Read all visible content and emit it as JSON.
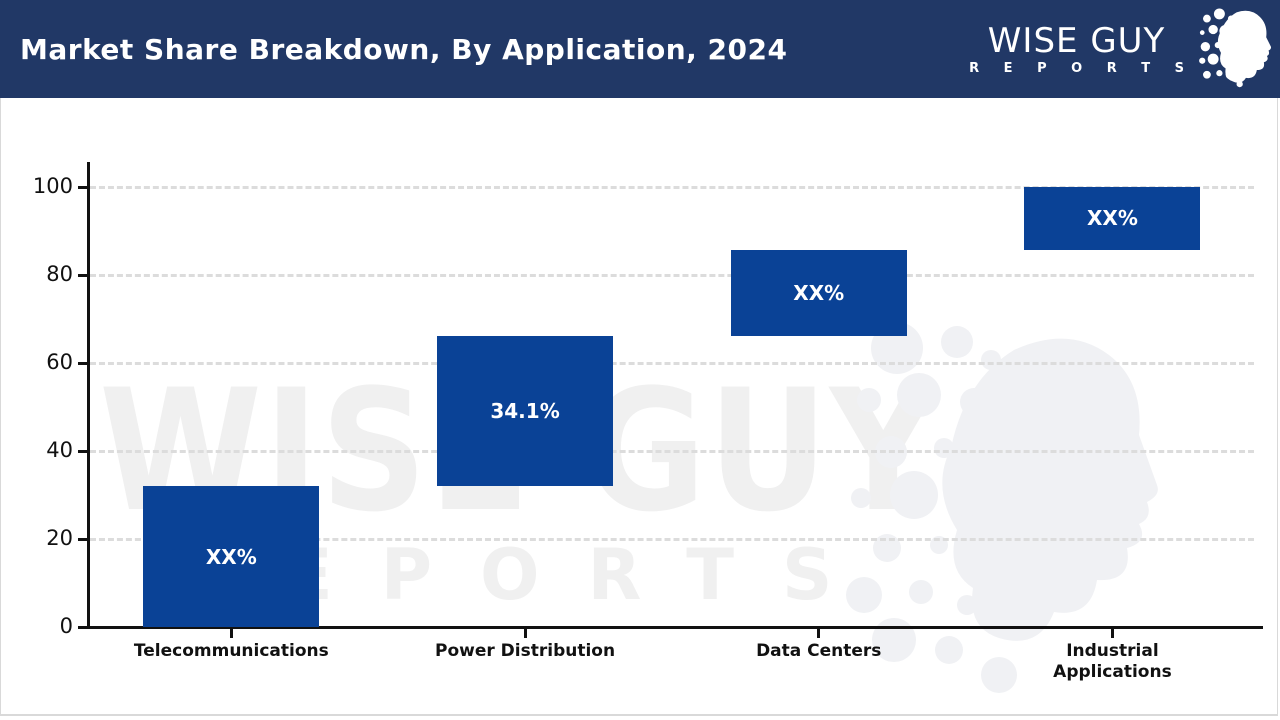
{
  "header": {
    "title": "Market Share Breakdown, By Application, 2024",
    "logo": {
      "line1": "WISE GUY",
      "line2": "REPORTS"
    }
  },
  "watermark": {
    "line1": "WISE GUY",
    "line2": "REPORTS"
  },
  "colors": {
    "header_bg": "#213866",
    "bar": "#0a4296",
    "grid": "#dcdcdc",
    "axis": "#111111",
    "watermark": "#f0f1f4"
  },
  "chart_data": {
    "type": "bar",
    "variant": "floating-breakdown-waterfall",
    "title": "Market Share Breakdown, By Application, 2024",
    "categories": [
      "Telecommunications",
      "Power Distribution",
      "Data Centers",
      "Industrial Applications"
    ],
    "segments": [
      {
        "category": "Telecommunications",
        "start": 0,
        "end": 31.9,
        "label": "XX%"
      },
      {
        "category": "Power Distribution",
        "start": 31.9,
        "end": 66.0,
        "label": "34.1%"
      },
      {
        "category": "Data Centers",
        "start": 66.0,
        "end": 85.5,
        "label": "XX%"
      },
      {
        "category": "Industrial Applications",
        "start": 85.5,
        "end": 100,
        "label": "XX%"
      }
    ],
    "ylim": [
      0,
      100
    ],
    "yticks": [
      0,
      20,
      40,
      60,
      80,
      100
    ],
    "xlabel": "",
    "ylabel": "",
    "grid": "horizontal-dashed",
    "legend": null
  }
}
